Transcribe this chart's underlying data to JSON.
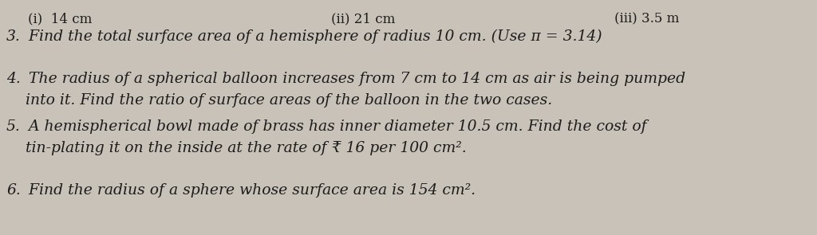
{
  "background_color": "#c8c2b8",
  "top_line_left": "(i)  14 cm",
  "top_line_mid": "(ii) 21 cm",
  "top_line_right": "(iii) 3.5 m",
  "q3_num": "3.",
  "q3_text": " Find the total surface area of a hemisphere of radius 10 cm. (Use π = 3.14)",
  "q4_num": "4.",
  "q4_line1": " The radius of a spherical balloon increases from 7 cm to 14 cm as air is being pumped",
  "q4_line2": "    into it. Find the ratio of surface areas of the balloon in the two cases.",
  "q5_num": "5.",
  "q5_line1": " A hemispherical bowl made of brass has inner diameter 10.5 cm. Find the cost of",
  "q5_line2": "    tin-plating it on the inside at the rate of ₹ 16 per 100 cm².",
  "q6_num": "6.",
  "q6_text": " Find the radius of a sphere whose surface area is 154 cm².",
  "font_size": 13.5,
  "font_size_top": 12,
  "text_color": "#1c1c1c"
}
